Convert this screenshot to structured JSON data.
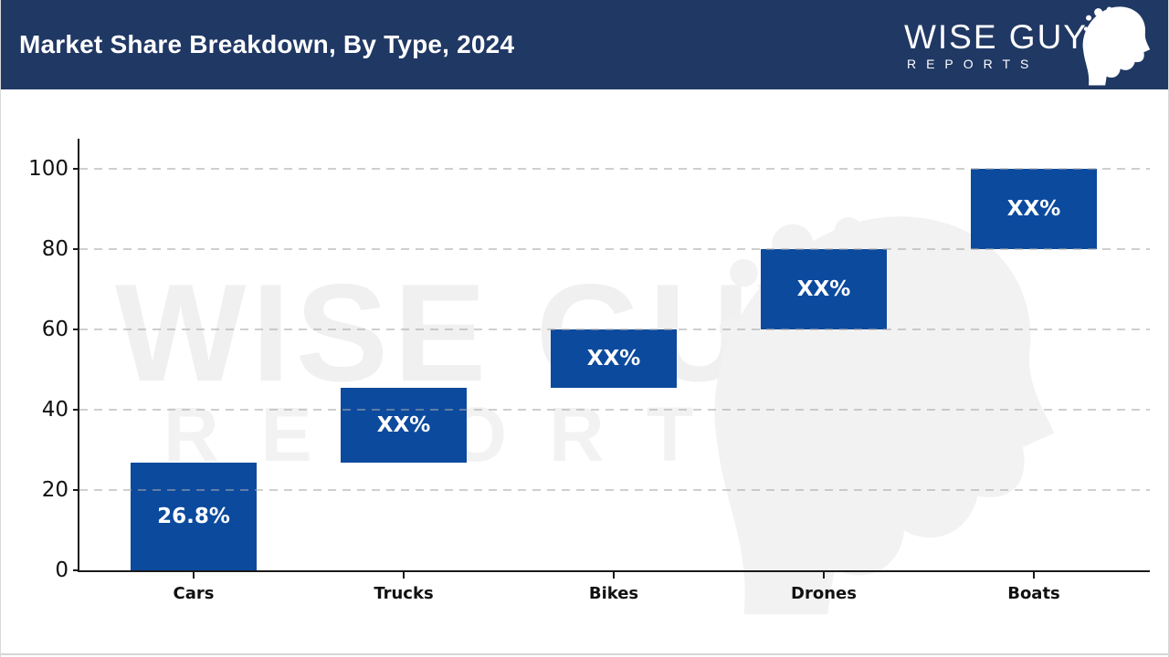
{
  "header": {
    "title": "Market Share Breakdown, By Type, 2024",
    "bg_color": "#203864",
    "logo": {
      "line1": "WISE GUY",
      "line2": "REPORTS"
    }
  },
  "watermark": {
    "line1": "WISE GUY",
    "line2": "REPORTS"
  },
  "chart_data": {
    "type": "bar",
    "subtype": "waterfall",
    "title": "Market Share Breakdown, By Type, 2024",
    "categories": [
      "Cars",
      "Trucks",
      "Bikes",
      "Drones",
      "Boats"
    ],
    "bars": [
      {
        "category": "Cars",
        "start": 0,
        "end": 26.8,
        "label": "26.8%"
      },
      {
        "category": "Trucks",
        "start": 26.8,
        "end": 45.4,
        "label": "XX%"
      },
      {
        "category": "Bikes",
        "start": 45.4,
        "end": 60,
        "label": "XX%"
      },
      {
        "category": "Drones",
        "start": 60,
        "end": 80,
        "label": "XX%"
      },
      {
        "category": "Boats",
        "start": 80,
        "end": 100,
        "label": "XX%"
      }
    ],
    "yticks": [
      0,
      20,
      40,
      60,
      80,
      100
    ],
    "ylim": [
      0,
      107
    ],
    "xlabel": "",
    "ylabel": "",
    "legend": "none",
    "grid": "horizontal-dashed",
    "bar_color": "#0c4a9e",
    "bar_label_color": "#ffffff",
    "axis_color": "#1a1a1a"
  }
}
